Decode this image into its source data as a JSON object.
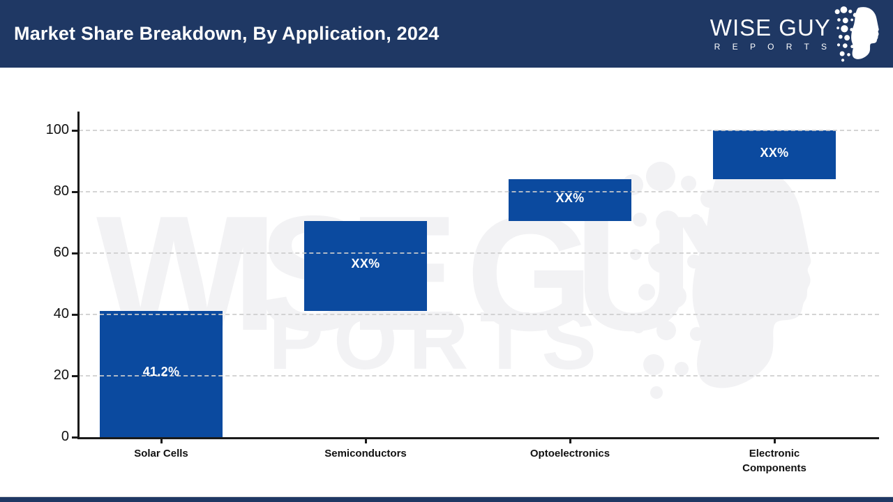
{
  "header": {
    "title": "Market Share Breakdown, By Application, 2024",
    "logo": {
      "line1": "WISE GUY",
      "line2": "R E P O R T S",
      "face_icon": "dotted-face-profile"
    }
  },
  "watermark": {
    "line1": "WISE GUY",
    "line2": "P O R T S"
  },
  "chart_data": {
    "type": "bar",
    "subtype": "floating-waterfall-bars",
    "title": "Market Share Breakdown, By Application, 2024",
    "categories": [
      "Solar Cells",
      "Semiconductors",
      "Optoelectronics",
      "Electronic Components"
    ],
    "segments": [
      {
        "category": "Solar Cells",
        "start": 0,
        "end": 41.2,
        "label": "41.2%"
      },
      {
        "category": "Semiconductors",
        "start": 41.2,
        "end": 70.5,
        "label": "XX%"
      },
      {
        "category": "Optoelectronics",
        "start": 70.5,
        "end": 84.2,
        "label": "XX%"
      },
      {
        "category": "Electronic Components",
        "start": 84.2,
        "end": 100,
        "label": "XX%"
      }
    ],
    "xlabel": "",
    "ylabel": "",
    "ylim": [
      0,
      100
    ],
    "yticks": [
      0,
      20,
      40,
      60,
      80,
      100
    ],
    "grid": "horizontal-dashed",
    "legend": "none",
    "colors": {
      "bar": "#0b4a9f",
      "bar_label": "#ffffff",
      "header_bg": "#1f3864",
      "header_text": "#ffffff",
      "grid": "#cdcdcd",
      "axis": "#1a1a1a",
      "watermark": "#f2f2f4"
    }
  }
}
